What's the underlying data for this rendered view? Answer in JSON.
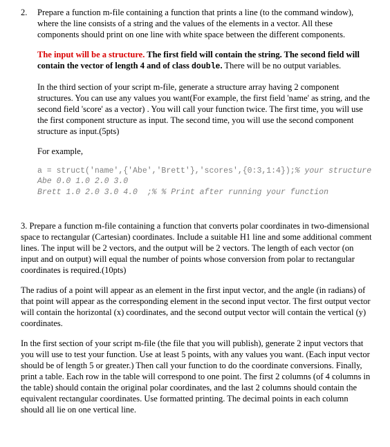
{
  "q2": {
    "number": "2.",
    "p1": "Prepare a function m-file containing a function that prints a line (to the command window), where the line consists of a string and the values of the elements in a vector.  All these components should print on one line with white space between the different components.",
    "p2_red": "The input will be a structure.",
    "p2_bold_a": "  The first field will contain the string.  The second field will contain the vector of length 4 and of class ",
    "p2_mono": "double",
    "p2_bold_b": ".",
    "p2_tail": "  There will be no output variables.",
    "p3": "In the third section of your script m-file, generate a structure array having 2 component structures.  You can use any values you want(For example,  the first field 'name' as string, and the second field 'score' as a vector) .  You will call your function twice.  The first time, you will use the first component structure as input.  The second time, you will use the second component structure as input.(5pts)",
    "p4": "For example,",
    "code": {
      "l1a": "a = struct('name',{'Abe','Brett'},'scores',{0:3,1:4});",
      "l1b": "% your structure",
      "l2": "Abe 0.0 1.0 2.0 3.0",
      "l3a": "Brett 1.0 2.0 3.0 4.0  ",
      "l3b": ";% % Print after running your function"
    }
  },
  "q3": {
    "number": "3. ",
    "p1": "Prepare a function m-file containing a function that converts polar coordinates in two-dimensional space to rectangular (Cartesian) coordinates.  Include a suitable H1 line and some additional comment lines.  The input will be 2 vectors, and the output will be 2 vectors.  The length of each vector (on input and on output) will equal the number of points whose conversion from polar to rectangular coordinates is required.(10pts)",
    "p2": "The radius of a point will appear as an element in the first input vector, and the angle (in radians) of that point will appear as the corresponding element in the second input vector.  The first output vector will contain the horizontal (x) coordinates, and the second output vector will contain the vertical (y) coordinates.",
    "p3": "In the first section of your script m-file (the file that you will publish), generate 2 input vectors that you will use to test your function.  Use at least 5 points, with any values you want.  (Each input vector should be of length 5 or greater.)  Then call your function to do the coordinate conversions.  Finally, print a table.  Each row in the table will correspond to one point.  The first 2 columns (of 4 columns in the table) should contain the original polar coordinates, and the last 2 columns should contain the equivalent rectangular coordinates.  Use formatted printing.  The decimal points in each column should all lie on one vertical line."
  }
}
